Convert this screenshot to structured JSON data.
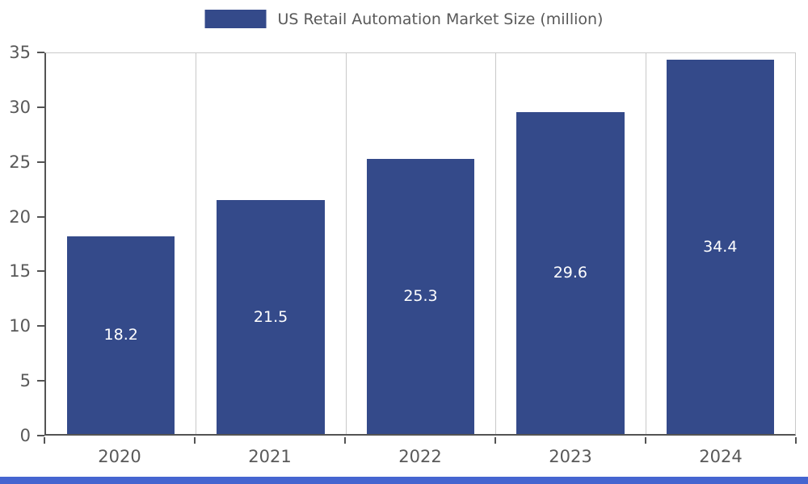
{
  "chart_data": {
    "type": "bar",
    "title": "US Retail Automation Market Size (million)",
    "categories": [
      "2020",
      "2021",
      "2022",
      "2023",
      "2024"
    ],
    "values": [
      18.2,
      21.5,
      25.3,
      29.6,
      34.4
    ],
    "xlabel": "",
    "ylabel": "",
    "ylim": [
      0,
      35
    ],
    "yticks": [
      0,
      5,
      10,
      15,
      20,
      25,
      30,
      35
    ],
    "grid": "vertical-only",
    "legend": {
      "position": "top-center",
      "label": "US Retail Automation Market Size (million)"
    }
  },
  "colors": {
    "bar": "#344a8a",
    "grid": "#c9c9c9",
    "axis": "#545454",
    "tick_label": "#595959",
    "bar_label": "#ffffff",
    "bottom_strip": "#4565d0"
  }
}
